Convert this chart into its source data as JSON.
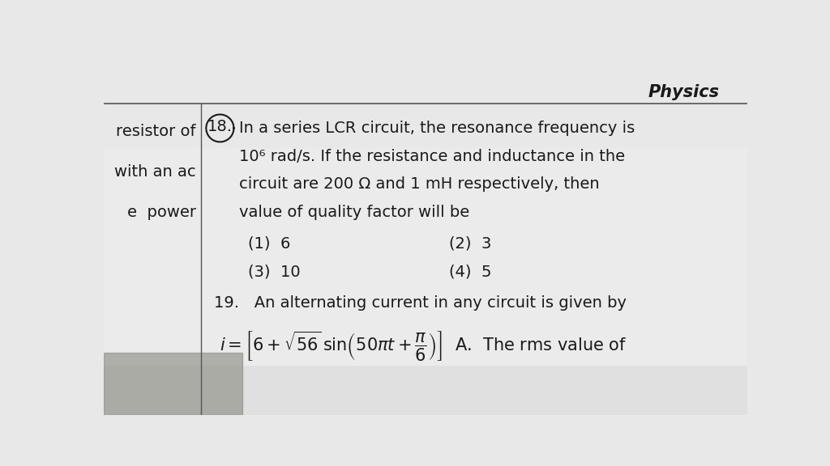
{
  "bg_color": "#e8e8e8",
  "text_color": "#1a1a1a",
  "title": "Physics",
  "title_fontstyle": "italic",
  "title_fontweight": "bold",
  "title_fontsize": 15,
  "main_fontsize": 14,
  "formula_fontsize": 15,
  "left_col_texts": [
    "resistor of",
    "with an ac",
    "e  power"
  ],
  "q18_lines": [
    "In a series LCR circuit, the resonance frequency is",
    "10⁶ rad/s. If the resistance and inductance in the",
    "circuit are 200 Ω and 1 mH respectively, then",
    "value of quality factor will be"
  ],
  "opt1": "(1)  6",
  "opt2": "(2)  3",
  "opt3": "(3)  10",
  "opt4": "(4)  5",
  "q19_text": "19.   An alternating current in any circuit is given by"
}
